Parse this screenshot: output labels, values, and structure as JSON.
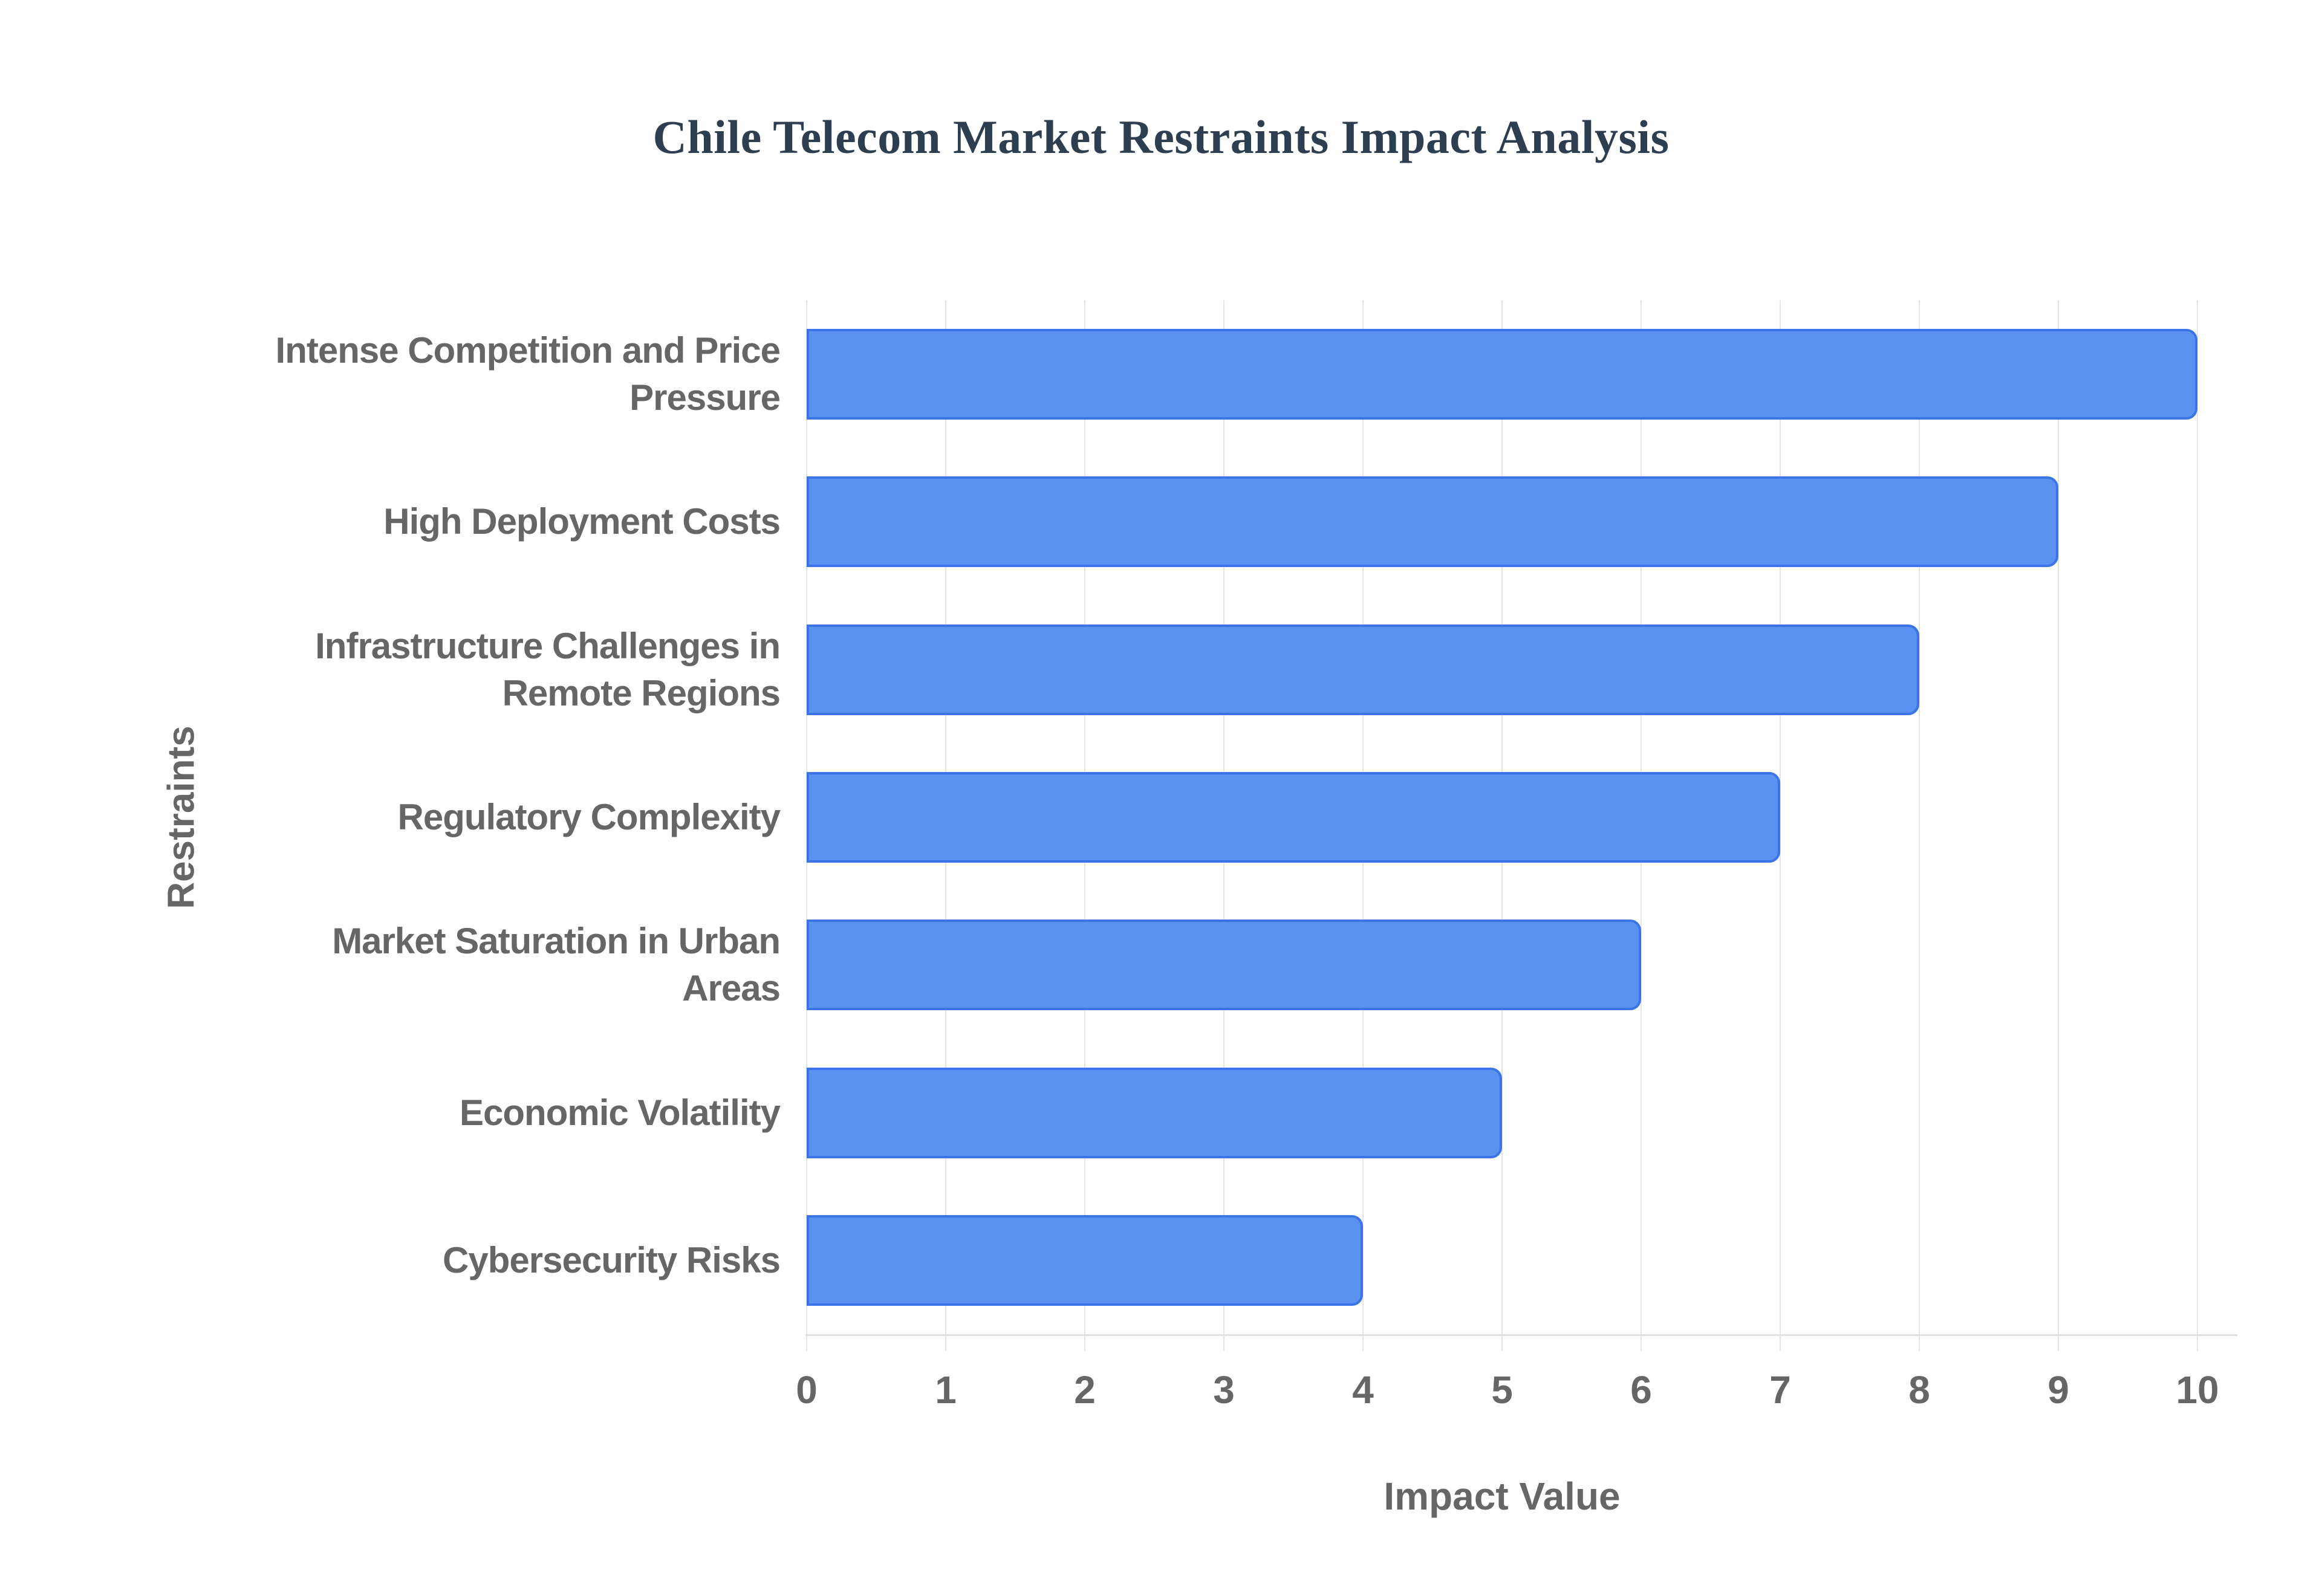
{
  "title": "Chile Telecom Market Restraints Impact Analysis",
  "axes": {
    "x_title": "Impact Value",
    "y_title": "Restraints",
    "x_tick_labels": [
      "0",
      "1",
      "2",
      "3",
      "4",
      "5",
      "6",
      "7",
      "8",
      "9",
      "10"
    ]
  },
  "chart_data": {
    "type": "bar",
    "orientation": "horizontal",
    "title": "Chile Telecom Market Restraints Impact Analysis",
    "xlabel": "Impact Value",
    "ylabel": "Restraints",
    "categories": [
      "Intense Competition and Price Pressure",
      "High Deployment Costs",
      "Infrastructure Challenges in Remote Regions",
      "Regulatory Complexity",
      "Market Saturation in Urban Areas",
      "Economic Volatility",
      "Cybersecurity Risks"
    ],
    "values": [
      10,
      9,
      8,
      7,
      6,
      5,
      4
    ],
    "xlim": [
      0,
      10
    ],
    "xticks": [
      0,
      1,
      2,
      3,
      4,
      5,
      6,
      7,
      8,
      9,
      10
    ],
    "grid": true,
    "legend": "none"
  },
  "category_label_lines": [
    [
      "Intense Competition and Price",
      "Pressure"
    ],
    [
      "High Deployment Costs"
    ],
    [
      "Infrastructure Challenges in",
      "Remote Regions"
    ],
    [
      "Regulatory Complexity"
    ],
    [
      "Market Saturation in Urban",
      "Areas"
    ],
    [
      "Economic Volatility"
    ],
    [
      "Cybersecurity Risks"
    ]
  ],
  "colors": {
    "background": "#ffffff",
    "title_text": "#2d3e50",
    "label_text": "#666666",
    "bar_fill": "#5b91f1",
    "bar_border": "#3b74e6",
    "gridline": "#e4e4e4",
    "axis_line": "#e0e0e0"
  }
}
